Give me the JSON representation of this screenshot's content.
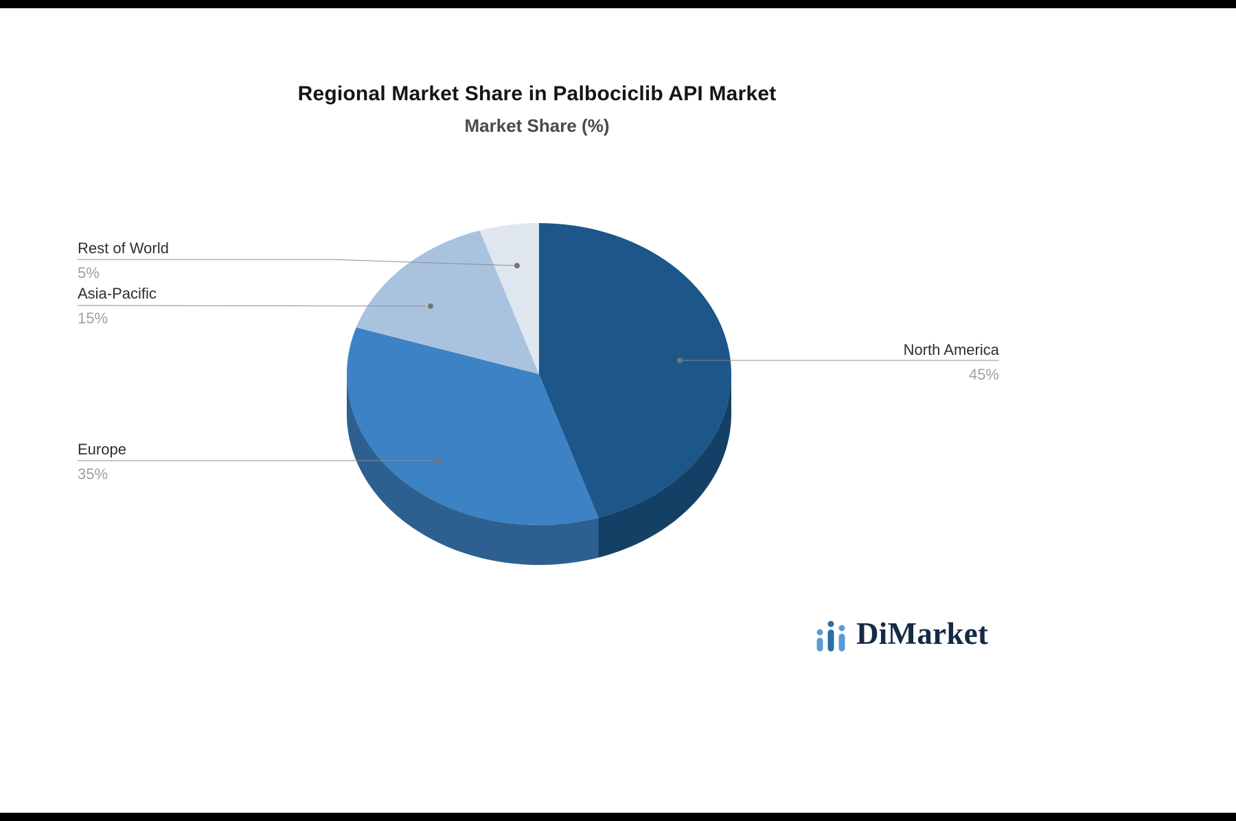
{
  "chart_data": {
    "type": "pie",
    "title": "Regional Market Share in Palbociclib API Market",
    "subtitle": "Market Share (%)",
    "unit": "%",
    "categories": [
      "North America",
      "Europe",
      "Asia-Pacific",
      "Rest of World"
    ],
    "values": [
      45,
      35,
      15,
      5
    ],
    "labels": [
      "45%",
      "35%",
      "15%",
      "5%"
    ],
    "colors": [
      "#1d5689",
      "#3d82c4",
      "#a9c3de",
      "#dfe6f0"
    ],
    "style": "3d-pie",
    "start_angle_deg": 0,
    "direction": "clockwise",
    "legend_position": "callout-labels",
    "grid": false
  },
  "leaders": {
    "line_color": "#8c8c8c",
    "dot_color": "#757575"
  },
  "brand": {
    "name": "DiMarket",
    "icon": "bar-chart-logo-icon",
    "color": "#152a43",
    "icon_colors": [
      "#5b9bd5",
      "#2e6da4",
      "#5b9bd5"
    ]
  }
}
